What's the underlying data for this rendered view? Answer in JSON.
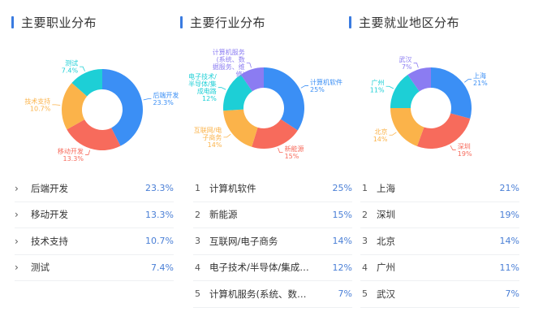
{
  "colors": {
    "blue": "#3b8ff5",
    "red": "#f76b5c",
    "orange": "#fbb34a",
    "cyan": "#1dcfd6",
    "purple": "#8b7cf2",
    "title_bar": "#3a7be0",
    "value_text": "#4a7fd6"
  },
  "panels": [
    {
      "title": "主要职业分布",
      "list_style": "chevron",
      "items": [
        {
          "rank": "",
          "label": "后端开发",
          "value": "23.3%"
        },
        {
          "rank": "",
          "label": "移动开发",
          "value": "13.3%"
        },
        {
          "rank": "",
          "label": "技术支持",
          "value": "10.7%"
        },
        {
          "rank": "",
          "label": "测试",
          "value": "7.4%"
        }
      ]
    },
    {
      "title": "主要行业分布",
      "list_style": "rank",
      "items": [
        {
          "rank": "1",
          "label": "计算机软件",
          "value": "25%"
        },
        {
          "rank": "2",
          "label": "新能源",
          "value": "15%"
        },
        {
          "rank": "3",
          "label": "互联网/电子商务",
          "value": "14%"
        },
        {
          "rank": "4",
          "label": "电子技术/半导体/集成…",
          "value": "12%"
        },
        {
          "rank": "5",
          "label": "计算机服务(系统、数…",
          "value": "7%"
        }
      ]
    },
    {
      "title": "主要就业地区分布",
      "list_style": "rank",
      "items": [
        {
          "rank": "1",
          "label": "上海",
          "value": "21%"
        },
        {
          "rank": "2",
          "label": "深圳",
          "value": "19%"
        },
        {
          "rank": "3",
          "label": "北京",
          "value": "14%"
        },
        {
          "rank": "4",
          "label": "广州",
          "value": "11%"
        },
        {
          "rank": "5",
          "label": "武汉",
          "value": "7%"
        }
      ]
    }
  ],
  "chart_data": [
    {
      "type": "pie",
      "subtype": "donut",
      "title": "主要职业分布",
      "categories": [
        "后端开发",
        "移动开发",
        "技术支持",
        "测试"
      ],
      "values": [
        23.3,
        13.3,
        10.7,
        7.4
      ],
      "labels": [
        [
          "后端开发",
          "23.3%"
        ],
        [
          "移动开发",
          "13.3%"
        ],
        [
          "技术支持",
          "10.7%"
        ],
        [
          "测试",
          "7.4%"
        ]
      ],
      "colors": [
        "#3b8ff5",
        "#f76b5c",
        "#fbb34a",
        "#1dcfd6"
      ],
      "start_angle": "top, clockwise",
      "legend": "none"
    },
    {
      "type": "pie",
      "subtype": "donut",
      "title": "主要行业分布",
      "categories": [
        "计算机软件",
        "新能源",
        "互联网/电子商务",
        "电子技术/半导体/集成电路",
        "计算机服务(系统、数据服务、维修)"
      ],
      "values": [
        25,
        15,
        14,
        12,
        7
      ],
      "labels": [
        [
          "计算机软件",
          "25%"
        ],
        [
          "新能源",
          "15%"
        ],
        [
          "互联网/电",
          "子商务",
          "14%"
        ],
        [
          "电子技术/",
          "半导体/集",
          "成电路",
          "12%"
        ],
        [
          "计算机服务",
          "(系统、数",
          "据服务、维",
          "修)"
        ]
      ],
      "colors": [
        "#3b8ff5",
        "#f76b5c",
        "#fbb34a",
        "#1dcfd6",
        "#8b7cf2"
      ],
      "start_angle": "top, clockwise",
      "legend": "none"
    },
    {
      "type": "pie",
      "subtype": "donut",
      "title": "主要就业地区分布",
      "categories": [
        "上海",
        "深圳",
        "北京",
        "广州",
        "武汉"
      ],
      "values": [
        21,
        19,
        14,
        11,
        7
      ],
      "labels": [
        [
          "上海",
          "21%"
        ],
        [
          "深圳",
          "19%"
        ],
        [
          "北京",
          "14%"
        ],
        [
          "广州",
          "11%"
        ],
        [
          "武汉",
          "7%"
        ]
      ],
      "colors": [
        "#3b8ff5",
        "#f76b5c",
        "#fbb34a",
        "#1dcfd6",
        "#8b7cf2"
      ],
      "start_angle": "top, clockwise",
      "legend": "none"
    }
  ]
}
